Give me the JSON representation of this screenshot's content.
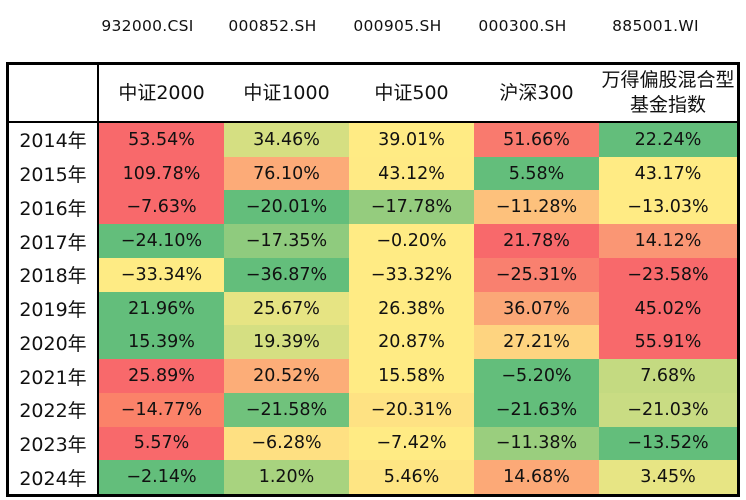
{
  "codes_row": {
    "items": [
      "932000.CSI",
      "000852.SH",
      "000905.SH",
      "000300.SH",
      "885001.WI"
    ]
  },
  "table": {
    "corner": "",
    "headers": [
      "中证2000",
      "中证1000",
      "中证500",
      "沪深300",
      "万得偏股混合型基金指数"
    ],
    "rows": [
      {
        "year": "2014年",
        "cells": [
          {
            "text": "53.54%",
            "bg": "#F8696B"
          },
          {
            "text": "34.46%",
            "bg": "#D5DF82"
          },
          {
            "text": "39.01%",
            "bg": "#FFEB84"
          },
          {
            "text": "51.66%",
            "bg": "#F97A6E"
          },
          {
            "text": "22.24%",
            "bg": "#63BE7B"
          }
        ]
      },
      {
        "year": "2015年",
        "cells": [
          {
            "text": "109.78%",
            "bg": "#F8696B"
          },
          {
            "text": "76.10%",
            "bg": "#FCAB78"
          },
          {
            "text": "43.12%",
            "bg": "#FFEA84"
          },
          {
            "text": "5.58%",
            "bg": "#63BE7B"
          },
          {
            "text": "43.17%",
            "bg": "#FFEB84"
          }
        ]
      },
      {
        "year": "2016年",
        "cells": [
          {
            "text": "−7.63%",
            "bg": "#F8696B"
          },
          {
            "text": "−20.01%",
            "bg": "#63BE7B"
          },
          {
            "text": "−17.78%",
            "bg": "#95CC7E"
          },
          {
            "text": "−11.28%",
            "bg": "#FDC17C"
          },
          {
            "text": "−13.03%",
            "bg": "#FFEB84"
          }
        ]
      },
      {
        "year": "2017年",
        "cells": [
          {
            "text": "−24.10%",
            "bg": "#63BE7B"
          },
          {
            "text": "−17.35%",
            "bg": "#8FCB7E"
          },
          {
            "text": "−0.20%",
            "bg": "#FFEB84"
          },
          {
            "text": "21.78%",
            "bg": "#F8696B"
          },
          {
            "text": "14.12%",
            "bg": "#FA9674"
          }
        ]
      },
      {
        "year": "2018年",
        "cells": [
          {
            "text": "−33.34%",
            "bg": "#FEEB84"
          },
          {
            "text": "−36.87%",
            "bg": "#63BE7B"
          },
          {
            "text": "−33.32%",
            "bg": "#FFEB84"
          },
          {
            "text": "−25.31%",
            "bg": "#F9806F"
          },
          {
            "text": "−23.58%",
            "bg": "#F8696B"
          }
        ]
      },
      {
        "year": "2019年",
        "cells": [
          {
            "text": "21.96%",
            "bg": "#63BE7B"
          },
          {
            "text": "25.67%",
            "bg": "#E6E483"
          },
          {
            "text": "26.38%",
            "bg": "#FFEB84"
          },
          {
            "text": "36.07%",
            "bg": "#FBA777"
          },
          {
            "text": "45.02%",
            "bg": "#F8696B"
          }
        ]
      },
      {
        "year": "2020年",
        "cells": [
          {
            "text": "15.39%",
            "bg": "#63BE7B"
          },
          {
            "text": "19.39%",
            "bg": "#D5DF82"
          },
          {
            "text": "20.87%",
            "bg": "#FFEB84"
          },
          {
            "text": "27.21%",
            "bg": "#FED480"
          },
          {
            "text": "55.91%",
            "bg": "#F8696B"
          }
        ]
      },
      {
        "year": "2021年",
        "cells": [
          {
            "text": "25.89%",
            "bg": "#F8696B"
          },
          {
            "text": "20.52%",
            "bg": "#FCAD78"
          },
          {
            "text": "15.58%",
            "bg": "#FFEB84"
          },
          {
            "text": "−5.20%",
            "bg": "#63BE7B"
          },
          {
            "text": "7.68%",
            "bg": "#C4DA81"
          }
        ]
      },
      {
        "year": "2022年",
        "cells": [
          {
            "text": "−14.77%",
            "bg": "#FB8269"
          },
          {
            "text": "−21.58%",
            "bg": "#70C27C"
          },
          {
            "text": "−20.31%",
            "bg": "#FEE283"
          },
          {
            "text": "−21.63%",
            "bg": "#63BE7B"
          },
          {
            "text": "−21.03%",
            "bg": "#C9DC83"
          }
        ]
      },
      {
        "year": "2023年",
        "cells": [
          {
            "text": "5.57%",
            "bg": "#F8696B"
          },
          {
            "text": "−6.28%",
            "bg": "#FEE082"
          },
          {
            "text": "−7.42%",
            "bg": "#FFEB84"
          },
          {
            "text": "−11.38%",
            "bg": "#9ACE7E"
          },
          {
            "text": "−13.52%",
            "bg": "#63BE7B"
          }
        ]
      },
      {
        "year": "2024年",
        "cells": [
          {
            "text": "−2.14%",
            "bg": "#63BE7B"
          },
          {
            "text": "1.20%",
            "bg": "#A8D37F"
          },
          {
            "text": "5.46%",
            "bg": "#FEE583"
          },
          {
            "text": "14.68%",
            "bg": "#FCA977"
          },
          {
            "text": "3.45%",
            "bg": "#E7E584"
          }
        ]
      }
    ]
  },
  "colors": {
    "scale_low_green": "#63BE7B",
    "scale_mid_yellow": "#FFEB84",
    "scale_high_red": "#F8696B",
    "border": "#000000",
    "background": "#FFFFFF"
  },
  "chart_data": {
    "type": "heatmap",
    "title": "",
    "unit": "%",
    "categories": [
      "2014年",
      "2015年",
      "2016年",
      "2017年",
      "2018年",
      "2019年",
      "2020年",
      "2021年",
      "2022年",
      "2023年",
      "2024年"
    ],
    "series": [
      {
        "name": "中证2000",
        "code": "932000.CSI",
        "values": [
          53.54,
          109.78,
          -7.63,
          -24.1,
          -33.34,
          21.96,
          15.39,
          25.89,
          -14.77,
          5.57,
          -2.14
        ]
      },
      {
        "name": "中证1000",
        "code": "000852.SH",
        "values": [
          34.46,
          76.1,
          -20.01,
          -17.35,
          -36.87,
          25.67,
          19.39,
          20.52,
          -21.58,
          -6.28,
          1.2
        ]
      },
      {
        "name": "中证500",
        "code": "000905.SH",
        "values": [
          39.01,
          43.12,
          -17.78,
          -0.2,
          -33.32,
          26.38,
          20.87,
          15.58,
          -20.31,
          -7.42,
          5.46
        ]
      },
      {
        "name": "沪深300",
        "code": "000300.SH",
        "values": [
          51.66,
          5.58,
          -11.28,
          21.78,
          -25.31,
          36.07,
          27.21,
          -5.2,
          -21.63,
          -11.38,
          14.68
        ]
      },
      {
        "name": "万得偏股混合型基金指数",
        "code": "885001.WI",
        "values": [
          22.24,
          43.17,
          -13.03,
          14.12,
          -23.58,
          45.02,
          55.91,
          7.68,
          -21.03,
          -13.52,
          3.45
        ]
      }
    ],
    "layout": {
      "rows_are": "years",
      "columns_are": "indices",
      "color_scale": {
        "low": "#63BE7B",
        "mid": "#FFEB84",
        "high": "#F8696B",
        "applied": "per-row (green=lowest, yellow=middle, red=highest annual return)"
      },
      "grid": "off",
      "legend": "none"
    }
  }
}
